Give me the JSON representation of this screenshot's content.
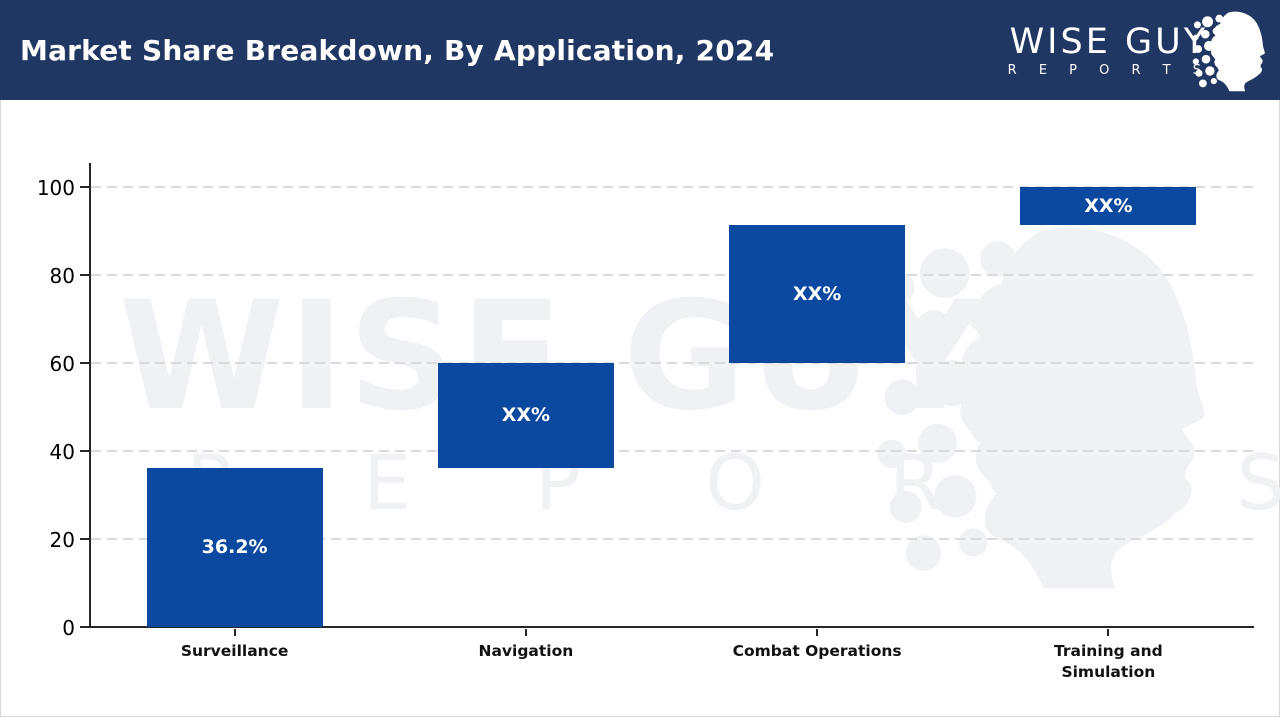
{
  "header": {
    "title": "Market Share Breakdown, By Application, 2024",
    "logo": {
      "line1": "WISE GUY",
      "line2": "R E P O R T S"
    }
  },
  "watermark": {
    "line1": "WISE GUY",
    "line2": "R E P O R T S"
  },
  "colors": {
    "header_bg": "#203764",
    "bar": "#0b49a0",
    "bar_label": "#ffffff",
    "gridline": "#dadada",
    "axis": "#262626",
    "watermark": "#f0f1f4"
  },
  "chart_data": {
    "type": "bar",
    "subtype": "waterfall",
    "title": "Market Share Breakdown, By Application, 2024",
    "categories": [
      "Surveillance",
      "Navigation",
      "Combat Operations",
      "Training and\nSimulation"
    ],
    "segments": [
      {
        "category": "Surveillance",
        "start": 0,
        "end": 36.2,
        "label": "36.2%"
      },
      {
        "category": "Navigation",
        "start": 36.2,
        "end": 60,
        "label": "XX%"
      },
      {
        "category": "Combat Operations",
        "start": 60,
        "end": 91.4,
        "label": "XX%"
      },
      {
        "category": "Training and Simulation",
        "start": 91.4,
        "end": 100,
        "label": "XX%"
      }
    ],
    "ylim": [
      0,
      100
    ],
    "yticks": [
      0,
      20,
      40,
      60,
      80,
      100
    ],
    "xlabel": "",
    "ylabel": "",
    "grid": "horizontal-dashed",
    "legend": "none"
  }
}
